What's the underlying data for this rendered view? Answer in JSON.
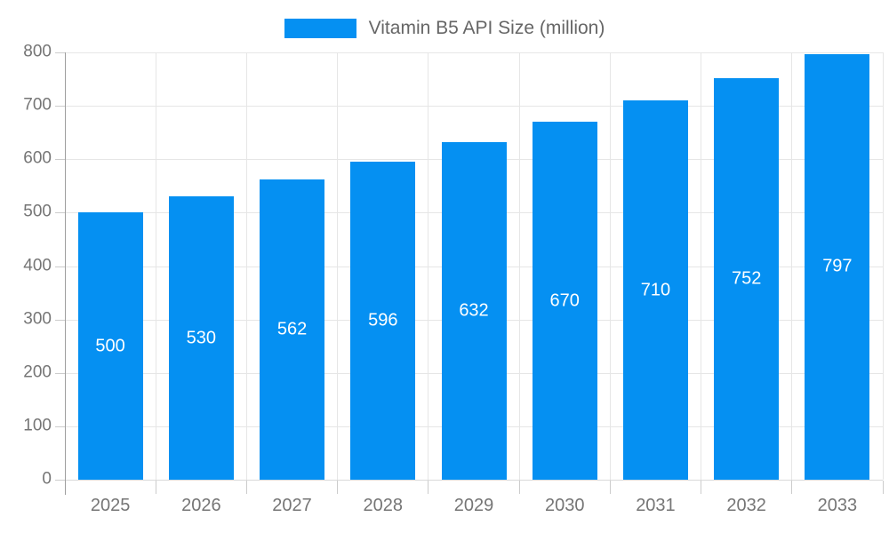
{
  "chart_data": {
    "type": "bar",
    "title": "Vitamin B5 API Size (million)",
    "legend": {
      "position": "top",
      "label": "Vitamin B5 API Size (million)"
    },
    "categories": [
      "2025",
      "2026",
      "2027",
      "2028",
      "2029",
      "2030",
      "2031",
      "2032",
      "2033"
    ],
    "values": [
      500,
      530,
      562,
      596,
      632,
      670,
      710,
      752,
      797
    ],
    "xlabel": "",
    "ylabel": "",
    "ylim": [
      0,
      800
    ],
    "ytick_step": 100,
    "grid": "horizontal and vertical light gray",
    "value_labels": "white, centered inside bars"
  },
  "colors": {
    "bar": "#0590f2",
    "gridline": "#e6e6e6",
    "y_axis_line": "#9e9e9e",
    "x_axis_line": "#d9d9d9",
    "tick": "#cccccc",
    "axis_text": "#757575",
    "legend_text": "#666666",
    "value_text": "#ffffff",
    "background": "#ffffff"
  }
}
